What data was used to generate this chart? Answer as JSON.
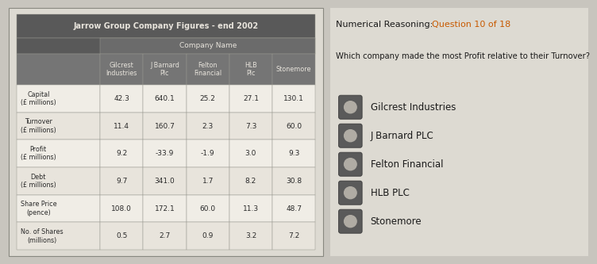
{
  "title": "Jarrow Group Company Figures - end 2002",
  "subtitle_label": "Company Name",
  "columns": [
    "Gilcrest\nIndustries",
    "J Barnard\nPlc",
    "Felton\nFinancial",
    "HLB\nPlc",
    "Stonemore"
  ],
  "rows": [
    "Capital\n(£ millions)",
    "Turnover\n(£ millions)",
    "Profit\n(£ millions)",
    "Debt\n(£ millions)",
    "Share Price\n(pence)",
    "No. of Shares\n(millions)"
  ],
  "data": [
    [
      42.3,
      640.1,
      25.2,
      27.1,
      130.1
    ],
    [
      11.4,
      160.7,
      2.3,
      7.3,
      60.0
    ],
    [
      9.2,
      -33.9,
      -1.9,
      3.0,
      9.3
    ],
    [
      9.7,
      341.0,
      1.7,
      8.2,
      30.8
    ],
    [
      108.0,
      172.1,
      60.0,
      11.3,
      48.7
    ],
    [
      0.5,
      2.7,
      0.9,
      3.2,
      7.2
    ]
  ],
  "header_bg": "#595959",
  "subheader_bg": "#6b6b6b",
  "col_header_bg": "#757575",
  "cell_bg_odd": "#f0ede6",
  "cell_bg_even": "#e8e4dc",
  "header_text_color": "#e8e4dc",
  "cell_text_color": "#2a2a2a",
  "row_label_color": "#2a2a2a",
  "title_color": "#e8e4dc",
  "right_panel_bg": "#dddad2",
  "right_title_color_normal": "#1a1a1a",
  "right_title_color_highlight": "#c85a00",
  "right_question": "Which company made the most Profit relative to their Turnover?",
  "right_question_color": "#1a1a1a",
  "options": [
    "Gilcrest Industries",
    "J Barnard PLC",
    "Felton Financial",
    "HLB PLC",
    "Stonemore"
  ],
  "option_box_bg": "#5a5a5a",
  "option_circle_color": "#b0aca4",
  "option_text_color": "#1a1a1a",
  "fig_bg": "#c8c5be",
  "table_outer_bg": "#dddad2"
}
